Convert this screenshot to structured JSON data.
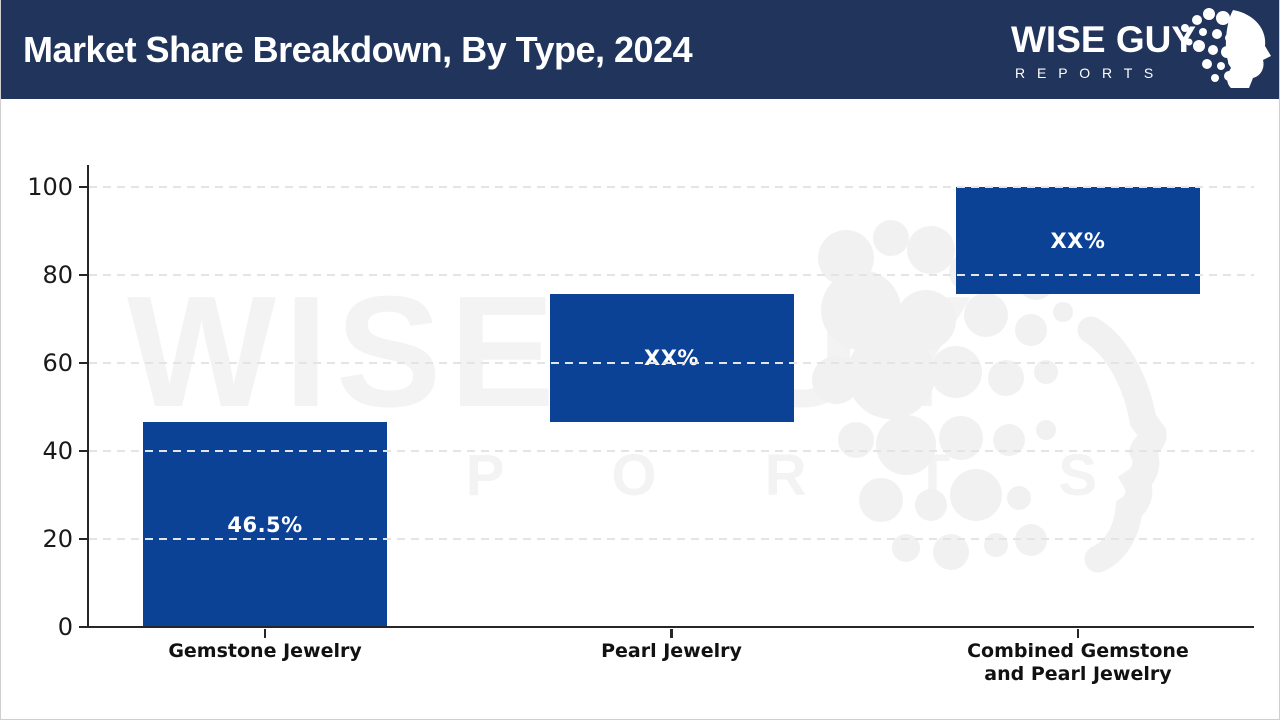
{
  "header": {
    "title": "Market Share Breakdown, By Type, 2024",
    "bg_color": "#21345b",
    "logo": {
      "name": "WISE GUY",
      "sub": "R E P O R T S"
    }
  },
  "watermark": {
    "big": "WISE GUY",
    "sub": "R E P O R T S"
  },
  "chart_data": {
    "type": "bar",
    "subtype": "waterfall",
    "title": "Market Share Breakdown, By Type, 2024",
    "categories": [
      [
        "Gemstone Jewelry"
      ],
      [
        "Pearl Jewelry"
      ],
      [
        "Combined Gemstone",
        "and Pearl Jewelry"
      ]
    ],
    "segments": [
      {
        "category": "Gemstone Jewelry",
        "start": 0,
        "end": 46.5,
        "value": 46.5,
        "label": "46.5%"
      },
      {
        "category": "Pearl Jewelry",
        "start": 46.5,
        "end": 75.6,
        "value": 29.1,
        "label": "XX%"
      },
      {
        "category": "Combined Gemstone and Pearl Jewelry",
        "start": 75.6,
        "end": 100,
        "value": 24.4,
        "label": "XX%"
      }
    ],
    "bar_color": "#0b4295",
    "bar_label_color": "#ffffff",
    "axis_color": "#262626",
    "grid_color": "#e4e4e4",
    "grid": "horizontal-dashed",
    "legend": false,
    "xlabel": "",
    "ylabel": "",
    "ylim": [
      0,
      100
    ],
    "yticks": [
      0,
      20,
      40,
      60,
      80,
      100
    ]
  }
}
